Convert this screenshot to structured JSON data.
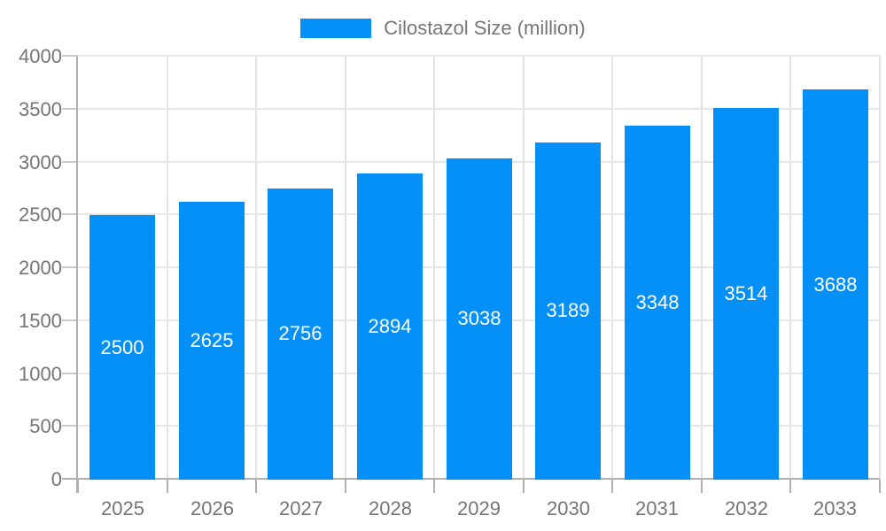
{
  "chart_data": {
    "type": "bar",
    "title": "",
    "legend": {
      "label": "Cilostazol Size (million)",
      "position": "top-center"
    },
    "categories": [
      "2025",
      "2026",
      "2027",
      "2028",
      "2029",
      "2030",
      "2031",
      "2032",
      "2033"
    ],
    "series": [
      {
        "name": "Cilostazol Size (million)",
        "values": [
          2500,
          2625,
          2756,
          2894,
          3038,
          3189,
          3348,
          3514,
          3688
        ]
      }
    ],
    "bar_labels": [
      2500,
      2625,
      2756,
      2894,
      3038,
      3189,
      3348,
      3514,
      3688
    ],
    "xlabel": "",
    "ylabel": "",
    "ylim": [
      0,
      4000
    ],
    "yticks": [
      0,
      500,
      1000,
      1500,
      2000,
      2500,
      3000,
      3500,
      4000
    ],
    "grid": true,
    "colors": {
      "bar": "#0590f7",
      "bar_label": "#ffffff",
      "axis_label": "#757575",
      "axis_line": "#b0b0b0",
      "gridline": "#e6e6e6",
      "background": "#ffffff"
    }
  }
}
